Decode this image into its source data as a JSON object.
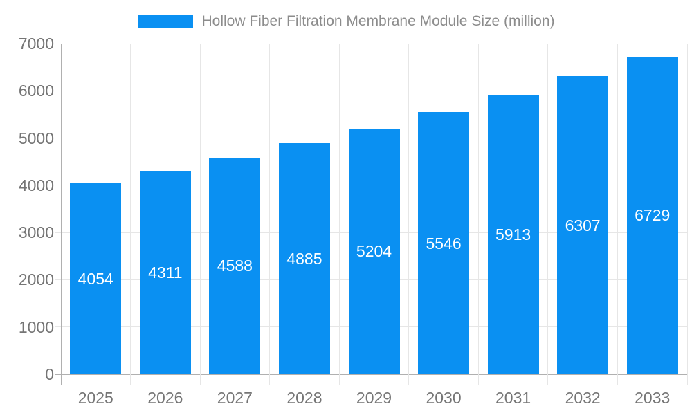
{
  "chart_data": {
    "type": "bar",
    "title": "Hollow Fiber Filtration Membrane Module Size (million)",
    "categories": [
      "2025",
      "2026",
      "2027",
      "2028",
      "2029",
      "2030",
      "2031",
      "2032",
      "2033"
    ],
    "values": [
      4054,
      4311,
      4588,
      4885,
      5204,
      5546,
      5913,
      6307,
      6729
    ],
    "series": [
      {
        "name": "Hollow Fiber Filtration Membrane Module Size (million)",
        "values": [
          4054,
          4311,
          4588,
          4885,
          5204,
          5546,
          5913,
          6307,
          6729
        ]
      }
    ],
    "xlabel": "",
    "ylabel": "",
    "ylim": [
      0,
      7000
    ],
    "ytick_interval": 1000,
    "ytick_labels": [
      "0",
      "1000",
      "2000",
      "3000",
      "4000",
      "5000",
      "6000",
      "7000"
    ],
    "grid": "on",
    "legend_position": "top-center",
    "bar_label_position": "inside-center"
  },
  "colors": {
    "bar": "#0A90F2",
    "bar_label": "#ffffff",
    "axis_line": "#b0b0b0",
    "grid_line": "#e6e6e6",
    "tick_text": "#757575",
    "title_text": "#8c8c8c",
    "background": "#ffffff"
  }
}
